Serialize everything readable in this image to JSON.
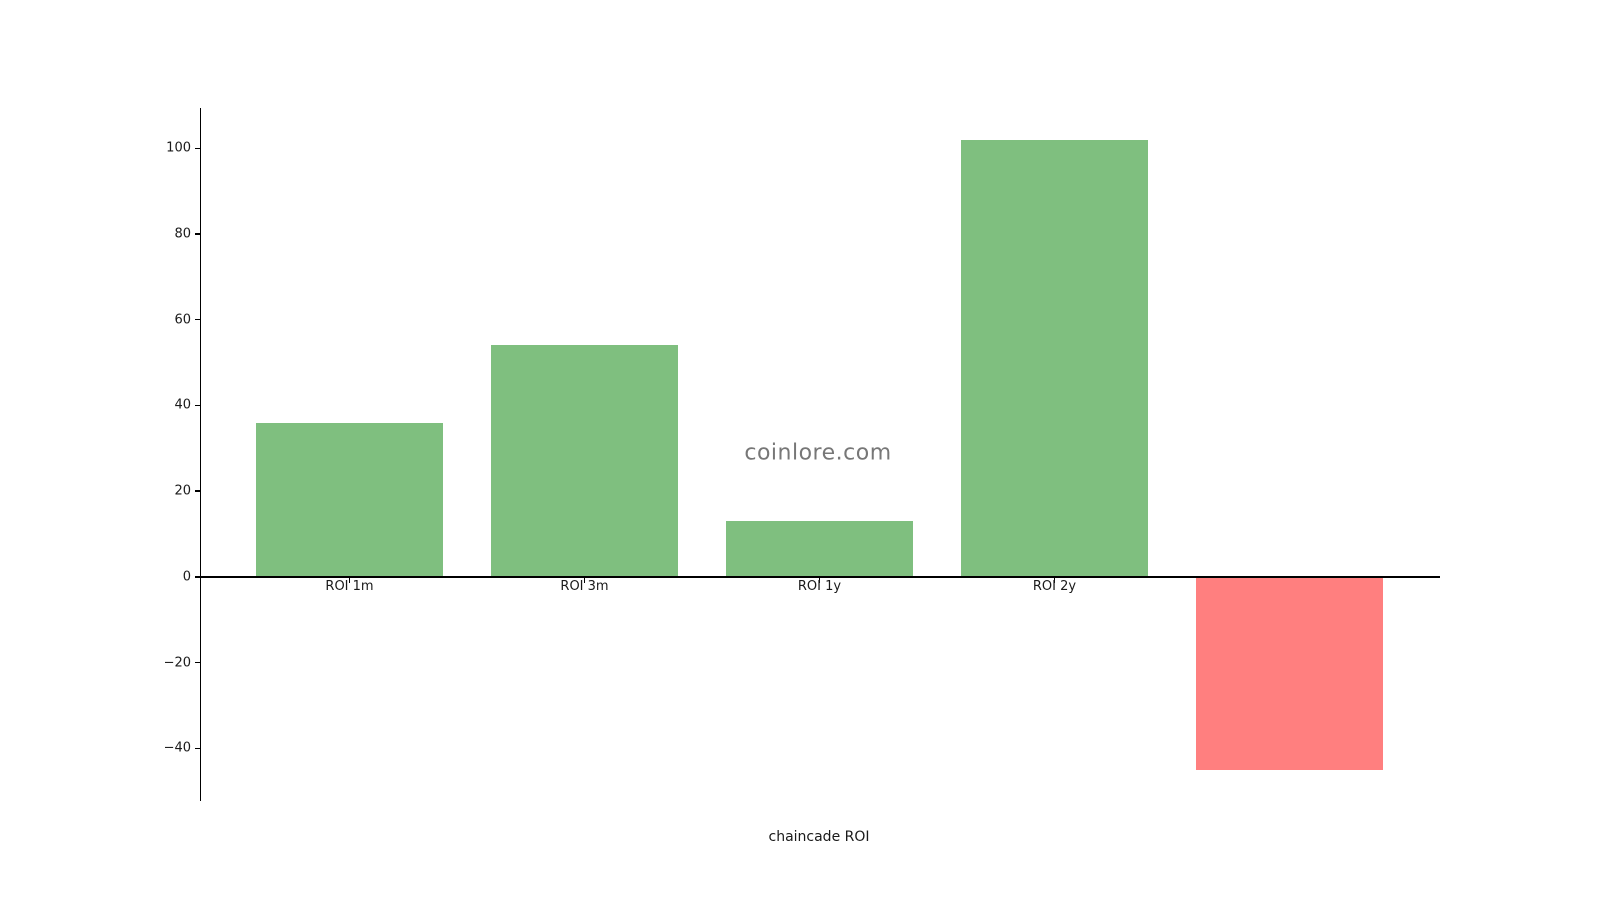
{
  "watermark": {
    "text": "coinlore.com",
    "color": "#777777"
  },
  "chart_data": {
    "type": "bar",
    "title": "",
    "xlabel": "chaincade ROI",
    "ylabel": "",
    "categories": [
      "ROI 1m",
      "ROI 3m",
      "ROI 1y",
      "ROI 2y",
      ""
    ],
    "values": [
      36,
      54,
      13,
      102,
      -45
    ],
    "bar_colors": [
      "#7fbf7f",
      "#7fbf7f",
      "#7fbf7f",
      "#7fbf7f",
      "#ff7f7f"
    ],
    "positive_color": "#7fbf7f",
    "negative_color": "#ff7f7f",
    "axis_color": "#000000",
    "tick_text_color": "#1a1a1a",
    "ylim": [
      -52.3,
      109.4
    ],
    "yticks": [
      100,
      80,
      60,
      40,
      20,
      0,
      -20,
      -40
    ],
    "ytick_labels": [
      "100",
      "80",
      "60",
      "40",
      "20",
      "0",
      "−20",
      "−40"
    ],
    "grid": false,
    "legend": false
  }
}
